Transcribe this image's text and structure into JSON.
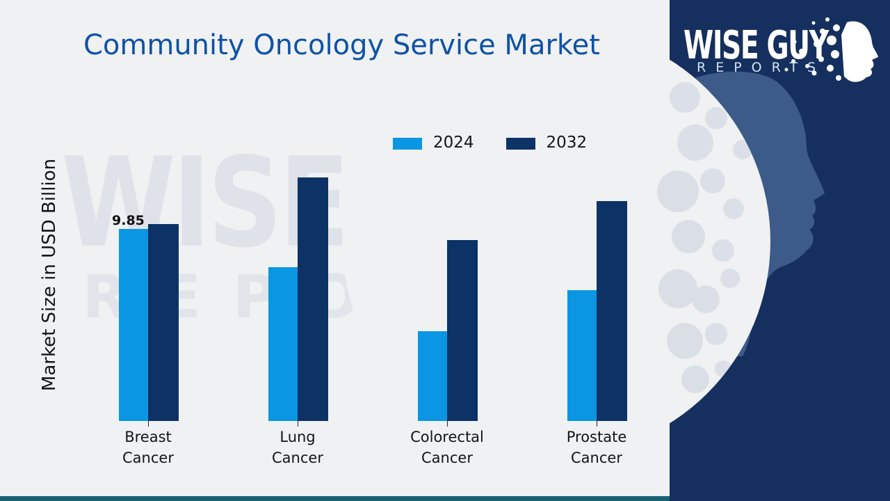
{
  "page": {
    "background_color": "#f0f1f3",
    "accent_strip_color": "#1a6173"
  },
  "title": {
    "text": "Community Oncology Service Market",
    "color": "#0e52a4"
  },
  "brand": {
    "panel_color": "#152f5e",
    "logo_primary": "WISE GUY",
    "logo_secondary": "REPORTS",
    "face_silhouette_color": "#3d5b88"
  },
  "watermark": {
    "primary": "WISE GUY",
    "secondary": "REPORTS"
  },
  "chart_data": {
    "type": "bar",
    "title": "Community Oncology Service Market",
    "xlabel": "",
    "ylabel": "Market Size in USD Billion",
    "categories": [
      "Breast Cancer",
      "Lung Cancer",
      "Colorectal Cancer",
      "Prostate Cancer"
    ],
    "category_lines": [
      [
        "Breast",
        "Cancer"
      ],
      [
        "Lung",
        "Cancer"
      ],
      [
        "Colorectal",
        "Cancer"
      ],
      [
        "Prostate",
        "Cancer"
      ]
    ],
    "series": [
      {
        "name": "2024",
        "color": "#0a96e2",
        "values": [
          9.85,
          7.9,
          4.6,
          6.7
        ]
      },
      {
        "name": "2032",
        "color": "#0d3266",
        "values": [
          10.1,
          12.5,
          9.3,
          11.3
        ]
      }
    ],
    "data_labels": [
      {
        "series": "2024",
        "category": "Breast Cancer",
        "text": "9.85"
      }
    ],
    "ylim": [
      0,
      13
    ],
    "grid": false,
    "axis_line": false,
    "legend_position": "top-center"
  }
}
